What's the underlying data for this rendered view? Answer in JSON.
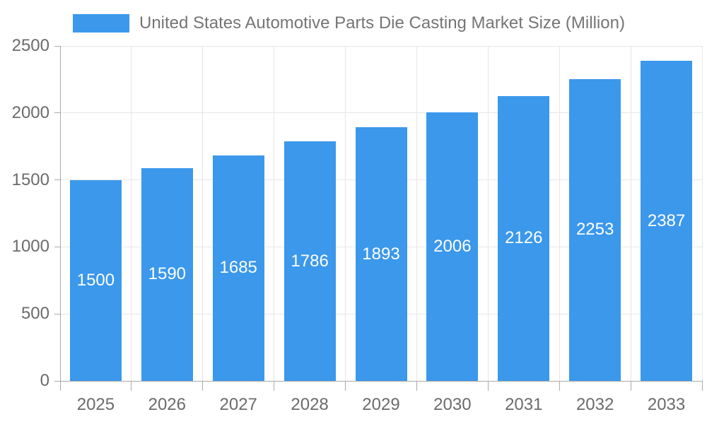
{
  "legend": {
    "label": "United States Automotive Parts Die Casting Market Size (Million)"
  },
  "chart_data": {
    "type": "bar",
    "title": "United States Automotive Parts Die Casting Market Size (Million)",
    "series": [
      {
        "name": "United States Automotive Parts Die Casting Market Size (Million)",
        "values": [
          1500,
          1590,
          1685,
          1786,
          1893,
          2006,
          2126,
          2253,
          2387
        ]
      }
    ],
    "categories": [
      "2025",
      "2026",
      "2027",
      "2028",
      "2029",
      "2030",
      "2031",
      "2032",
      "2033"
    ],
    "xlabel": "",
    "ylabel": "",
    "ylim": [
      0,
      2500
    ],
    "yticks": [
      0,
      500,
      1000,
      1500,
      2000,
      2500
    ],
    "grid": true,
    "legend_position": "top",
    "data_labels_position": "inside-center",
    "colors": {
      "bar": "#3B98EB",
      "grid": "#E6E6E6",
      "axis": "#AAAAAA",
      "tick_text": "#6B6B6B",
      "legend_text": "#757575",
      "bar_label": "#FFFFFF",
      "background": "#FFFFFF"
    }
  }
}
